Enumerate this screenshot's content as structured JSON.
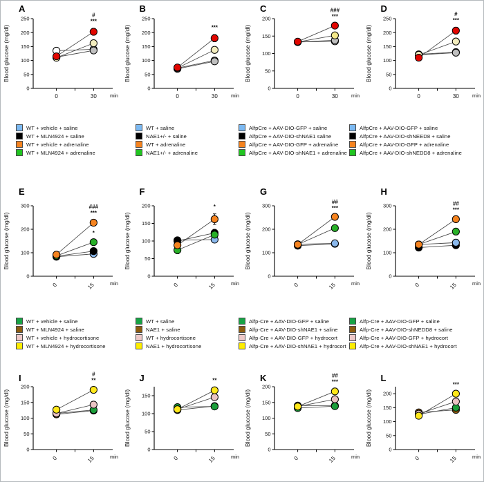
{
  "figure": {
    "ylabel": "Blood glucose (mg/dl)",
    "xunit": "min"
  },
  "chart_data": [
    {
      "type": "line",
      "panel": "A",
      "row": 1,
      "x": [
        0,
        30
      ],
      "ylim": [
        0,
        250
      ],
      "yticks": [
        0,
        50,
        100,
        150,
        200,
        250
      ],
      "ylabel": "Blood glucose (mg/dl)",
      "xunit": "min",
      "rotated_xticks": false,
      "series": [
        {
          "name": "open-white",
          "color": "#ffffff",
          "values": [
            135,
            140
          ],
          "err": [
            5,
            5
          ]
        },
        {
          "name": "gray",
          "color": "#bfbfbf",
          "values": [
            112,
            136
          ],
          "err": [
            5,
            6
          ]
        },
        {
          "name": "cream",
          "color": "#f3edbe",
          "values": [
            110,
            162
          ],
          "err": [
            5,
            8
          ]
        },
        {
          "name": "red",
          "color": "#e10600",
          "values": [
            115,
            203
          ],
          "err": [
            6,
            12
          ],
          "sig": [
            "#",
            "***"
          ]
        }
      ]
    },
    {
      "type": "line",
      "panel": "B",
      "row": 1,
      "x": [
        0,
        30
      ],
      "ylim": [
        0,
        250
      ],
      "yticks": [
        0,
        50,
        100,
        150,
        200,
        250
      ],
      "ylabel": "Blood glucose (mg/dl)",
      "xunit": "min",
      "rotated_xticks": false,
      "series": [
        {
          "name": "open-white",
          "color": "#ffffff",
          "values": [
            73,
            100
          ],
          "err": [
            5,
            6
          ]
        },
        {
          "name": "gray",
          "color": "#bfbfbf",
          "values": [
            70,
            97
          ],
          "err": [
            5,
            7
          ]
        },
        {
          "name": "cream",
          "color": "#f3edbe",
          "values": [
            73,
            138
          ],
          "err": [
            5,
            8
          ]
        },
        {
          "name": "red",
          "color": "#e10600",
          "values": [
            75,
            180
          ],
          "err": [
            5,
            13
          ],
          "sig": [
            "***"
          ]
        }
      ]
    },
    {
      "type": "line",
      "panel": "C",
      "row": 1,
      "x": [
        0,
        30
      ],
      "ylim": [
        0,
        200
      ],
      "yticks": [
        0,
        50,
        100,
        150,
        200
      ],
      "ylabel": "Blood glucose (mg/dl)",
      "xunit": "min",
      "rotated_xticks": false,
      "series": [
        {
          "name": "open-white",
          "color": "#ffffff",
          "values": [
            133,
            135
          ],
          "err": [
            4,
            5
          ]
        },
        {
          "name": "gray",
          "color": "#bfbfbf",
          "values": [
            133,
            138
          ],
          "err": [
            4,
            5
          ]
        },
        {
          "name": "cream",
          "color": "#f3e88a",
          "values": [
            133,
            152
          ],
          "err": [
            4,
            5
          ]
        },
        {
          "name": "red",
          "color": "#e10600",
          "values": [
            134,
            180
          ],
          "err": [
            4,
            6
          ],
          "sig": [
            "###",
            "***"
          ]
        }
      ]
    },
    {
      "type": "line",
      "panel": "D",
      "row": 1,
      "x": [
        0,
        30
      ],
      "ylim": [
        0,
        250
      ],
      "yticks": [
        0,
        50,
        100,
        150,
        200,
        250
      ],
      "ylabel": "Blood glucose (mg/dl)",
      "xunit": "min",
      "rotated_xticks": false,
      "series": [
        {
          "name": "open-white",
          "color": "#ffffff",
          "values": [
            122,
            130
          ],
          "err": [
            5,
            5
          ]
        },
        {
          "name": "gray",
          "color": "#bfbfbf",
          "values": [
            120,
            128
          ],
          "err": [
            5,
            6
          ]
        },
        {
          "name": "cream",
          "color": "#f3edbe",
          "values": [
            120,
            168
          ],
          "err": [
            5,
            8
          ],
          "sig": [
            "**"
          ]
        },
        {
          "name": "red",
          "color": "#e10600",
          "values": [
            110,
            207
          ],
          "err": [
            6,
            12
          ],
          "sig": [
            "#",
            "***"
          ]
        }
      ]
    },
    {
      "type": "line",
      "panel": "E",
      "row": 2,
      "x": [
        0,
        15
      ],
      "ylim": [
        0,
        300
      ],
      "yticks": [
        0,
        100,
        200,
        300
      ],
      "ylabel": "Blood glucose (mg/dl)",
      "xunit": "min",
      "rotated_xticks": true,
      "series": [
        {
          "name": "blue",
          "color": "#8ab8ec",
          "values": [
            83,
            95
          ],
          "err": [
            5,
            6
          ]
        },
        {
          "name": "black",
          "color": "#000000",
          "values": [
            85,
            107
          ],
          "err": [
            5,
            6
          ]
        },
        {
          "name": "green",
          "color": "#28b028",
          "values": [
            87,
            145
          ],
          "err": [
            6,
            10
          ],
          "sig": [
            "*"
          ]
        },
        {
          "name": "orange",
          "color": "#f5831f",
          "values": [
            92,
            228
          ],
          "err": [
            6,
            12
          ],
          "sig": [
            "###",
            "***"
          ]
        }
      ]
    },
    {
      "type": "line",
      "panel": "F",
      "row": 2,
      "x": [
        0,
        15
      ],
      "ylim": [
        0,
        200
      ],
      "yticks": [
        0,
        50,
        100,
        150,
        200
      ],
      "ylabel": "Blood glucose (mg/dl)",
      "xunit": "min",
      "rotated_xticks": true,
      "series": [
        {
          "name": "blue",
          "color": "#8ab8ec",
          "values": [
            102,
            104
          ],
          "err": [
            8,
            6
          ]
        },
        {
          "name": "black",
          "color": "#000000",
          "values": [
            100,
            123
          ],
          "err": [
            8,
            10
          ]
        },
        {
          "name": "green",
          "color": "#28b028",
          "values": [
            74,
            118
          ],
          "err": [
            10,
            8
          ]
        },
        {
          "name": "orange",
          "color": "#f5831f",
          "values": [
            88,
            162
          ],
          "err": [
            8,
            15
          ],
          "sig": [
            "*"
          ]
        }
      ]
    },
    {
      "type": "line",
      "panel": "G",
      "row": 2,
      "x": [
        0,
        15
      ],
      "ylim": [
        0,
        300
      ],
      "yticks": [
        0,
        100,
        200,
        300
      ],
      "ylabel": "Blood glucose (mg/dl)",
      "xunit": "min",
      "rotated_xticks": true,
      "series": [
        {
          "name": "black",
          "color": "#000000",
          "values": [
            130,
            138
          ],
          "err": [
            5,
            5
          ]
        },
        {
          "name": "blue",
          "color": "#8ab8ec",
          "values": [
            136,
            140
          ],
          "err": [
            4,
            5
          ]
        },
        {
          "name": "green",
          "color": "#28b028",
          "values": [
            135,
            205
          ],
          "err": [
            5,
            6
          ],
          "sig": [
            "***"
          ]
        },
        {
          "name": "orange",
          "color": "#f5831f",
          "values": [
            135,
            253
          ],
          "err": [
            5,
            8
          ],
          "sig": [
            "##",
            "***"
          ]
        }
      ]
    },
    {
      "type": "line",
      "panel": "H",
      "row": 2,
      "x": [
        0,
        15
      ],
      "ylim": [
        0,
        300
      ],
      "yticks": [
        0,
        100,
        200,
        300
      ],
      "ylabel": "Blood glucose (mg/dl)",
      "xunit": "min",
      "rotated_xticks": true,
      "series": [
        {
          "name": "black",
          "color": "#000000",
          "values": [
            122,
            132
          ],
          "err": [
            4,
            5
          ]
        },
        {
          "name": "blue",
          "color": "#8ab8ec",
          "values": [
            135,
            143
          ],
          "err": [
            4,
            5
          ]
        },
        {
          "name": "green",
          "color": "#28b028",
          "values": [
            135,
            190
          ],
          "err": [
            5,
            6
          ],
          "sig": [
            "*"
          ]
        },
        {
          "name": "orange",
          "color": "#f5831f",
          "values": [
            135,
            243
          ],
          "err": [
            5,
            10
          ],
          "sig": [
            "##",
            "***"
          ]
        }
      ]
    },
    {
      "type": "line",
      "panel": "I",
      "row": 3,
      "x": [
        0,
        15
      ],
      "ylim": [
        0,
        200
      ],
      "yticks": [
        0,
        50,
        100,
        150,
        200
      ],
      "ylabel": "Blood glucose (mg/dl)",
      "xunit": "min",
      "rotated_xticks": true,
      "series": [
        {
          "name": "brown",
          "color": "#8d5c10",
          "values": [
            112,
            124
          ],
          "err": [
            5,
            6
          ]
        },
        {
          "name": "green",
          "color": "#1b9e3a",
          "values": [
            115,
            126
          ],
          "err": [
            5,
            12
          ]
        },
        {
          "name": "pink",
          "color": "#eac3c3",
          "values": [
            115,
            143
          ],
          "err": [
            5,
            10
          ]
        },
        {
          "name": "yellow",
          "color": "#ffe81a",
          "values": [
            127,
            190
          ],
          "err": [
            5,
            8
          ],
          "sig": [
            "#",
            "**"
          ]
        }
      ]
    },
    {
      "type": "line",
      "panel": "J",
      "row": 3,
      "x": [
        0,
        15
      ],
      "ylim": [
        0,
        175
      ],
      "yticks": [
        0,
        50,
        100,
        150
      ],
      "ylabel": "Blood glucose (mg/dl)",
      "xunit": "min",
      "rotated_xticks": true,
      "series": [
        {
          "name": "brown",
          "color": "#8d5c10",
          "values": [
            110,
            121
          ],
          "err": [
            5,
            8
          ]
        },
        {
          "name": "green",
          "color": "#1b9e3a",
          "values": [
            118,
            120
          ],
          "err": [
            5,
            5
          ]
        },
        {
          "name": "pink",
          "color": "#eac3c3",
          "values": [
            112,
            146
          ],
          "err": [
            5,
            6
          ]
        },
        {
          "name": "yellow",
          "color": "#ffe81a",
          "values": [
            112,
            165
          ],
          "err": [
            5,
            8
          ],
          "sig": [
            "**"
          ]
        }
      ]
    },
    {
      "type": "line",
      "panel": "K",
      "row": 3,
      "x": [
        0,
        15
      ],
      "ylim": [
        0,
        200
      ],
      "yticks": [
        0,
        50,
        100,
        150,
        200
      ],
      "ylabel": "Blood glucose (mg/dl)",
      "xunit": "min",
      "rotated_xticks": true,
      "series": [
        {
          "name": "brown",
          "color": "#8d5c10",
          "values": [
            140,
            140
          ],
          "err": [
            4,
            4
          ]
        },
        {
          "name": "green",
          "color": "#1b9e3a",
          "values": [
            132,
            138
          ],
          "err": [
            4,
            5
          ]
        },
        {
          "name": "pink",
          "color": "#eac3c3",
          "values": [
            137,
            160
          ],
          "err": [
            4,
            6
          ],
          "sig": [
            "*"
          ]
        },
        {
          "name": "yellow",
          "color": "#ffe81a",
          "values": [
            137,
            185
          ],
          "err": [
            4,
            8
          ],
          "sig": [
            "##",
            "***"
          ]
        }
      ]
    },
    {
      "type": "line",
      "panel": "L",
      "row": 3,
      "x": [
        0,
        15
      ],
      "ylim": [
        0,
        225
      ],
      "yticks": [
        0,
        50,
        100,
        150,
        200
      ],
      "ylabel": "Blood glucose (mg/dl)",
      "xunit": "min",
      "rotated_xticks": true,
      "series": [
        {
          "name": "brown",
          "color": "#8d5c10",
          "values": [
            133,
            142
          ],
          "err": [
            5,
            6
          ]
        },
        {
          "name": "green",
          "color": "#1b9e3a",
          "values": [
            126,
            150
          ],
          "err": [
            5,
            6
          ]
        },
        {
          "name": "pink",
          "color": "#eac3c3",
          "values": [
            128,
            172
          ],
          "err": [
            5,
            6
          ]
        },
        {
          "name": "yellow",
          "color": "#ffe81a",
          "values": [
            121,
            200
          ],
          "err": [
            5,
            8
          ],
          "sig": [
            "***"
          ]
        }
      ]
    }
  ],
  "legend_rows": [
    {
      "groups": [
        {
          "items": [
            {
              "color": "#7cb9f2",
              "label": "WT + vehicle + saline"
            },
            {
              "color": "#000000",
              "label": "WT + MLN4924 + saline"
            },
            {
              "color": "#f5831f",
              "label": "WT + vehicle + adrenaline"
            },
            {
              "color": "#21c421",
              "label": "WT + MLN4924 + adrenaline"
            }
          ]
        },
        {
          "items": [
            {
              "color": "#7cb9f2",
              "label": "WT + saline"
            },
            {
              "color": "#000000",
              "label": "NAE1+/- + saline"
            },
            {
              "color": "#f5831f",
              "label": "WT + adrenaline"
            },
            {
              "color": "#21c421",
              "label": "NAE1+/- + adrenaline"
            }
          ]
        },
        {
          "items": [
            {
              "color": "#7cb9f2",
              "label": "AlfpCre + AAV-DIO-GFP + saline"
            },
            {
              "color": "#000000",
              "label": "AlfpCre + AAV-DIO-shNAE1 saline"
            },
            {
              "color": "#f5831f",
              "label": "AlfpCre + AAV-DIO-GFP + adrenaline"
            },
            {
              "color": "#21c421",
              "label": "AlfpCre + AAV-DIO-shNAE1 + adrenaline"
            }
          ]
        },
        {
          "items": [
            {
              "color": "#7cb9f2",
              "label": "AlfpCre + AAV-DIO-GFP + saline"
            },
            {
              "color": "#000000",
              "label": "AlfpCre + AAV-DIO-shNEED8 + saline"
            },
            {
              "color": "#f5831f",
              "label": "AlfpCre + AAV-DIO-GFP + adrenaline"
            },
            {
              "color": "#21c421",
              "label": "AlfpCre + AAV-DIO-shNEDD8 + adrenaline"
            }
          ]
        }
      ]
    },
    {
      "groups": [
        {
          "items": [
            {
              "color": "#17a345",
              "label": "WT + vehicle + saline"
            },
            {
              "color": "#8d5c10",
              "label": "WT + MLN4924 + saline"
            },
            {
              "color": "#eec9c9",
              "label": "WT + vehicle + hydrocortisone"
            },
            {
              "color": "#fded00",
              "label": "WT + MLN4924 + hydrocortisone"
            }
          ]
        },
        {
          "items": [
            {
              "color": "#17a345",
              "label": "WT + saline"
            },
            {
              "color": "#8d5c10",
              "label": "NAE1 + saline"
            },
            {
              "color": "#eec9c9",
              "label": "WT + hydrocortisone"
            },
            {
              "color": "#fded00",
              "label": "NAE1 + hydrocortisone"
            }
          ]
        },
        {
          "items": [
            {
              "color": "#17a345",
              "label": "Alfp-Cre + AAV-DIO-GFP + saline"
            },
            {
              "color": "#8d5c10",
              "label": "Alfp-Cre + AAV-DIO-shNAE1 + saline"
            },
            {
              "color": "#eec9c9",
              "label": "Alfp-Cre + AAV-DIO-GFP + hydrocort"
            },
            {
              "color": "#fded00",
              "label": "Alfp-Cre + AAV-DIO-shNAE1 + hydrocort"
            }
          ]
        },
        {
          "items": [
            {
              "color": "#17a345",
              "label": "Alfp-Cre + AAV-DIO-GFP + saline"
            },
            {
              "color": "#8d5c10",
              "label": "Alfp-Cre + AAV-DIO-shNEDD8 + saline"
            },
            {
              "color": "#eec9c9",
              "label": "Alfp-Cre + AAV-DIO-GFP + hydrocort"
            },
            {
              "color": "#fded00",
              "label": "Alfp-Cre + AAV-DIO-shNAE1 + hydrocort"
            }
          ]
        }
      ]
    }
  ]
}
